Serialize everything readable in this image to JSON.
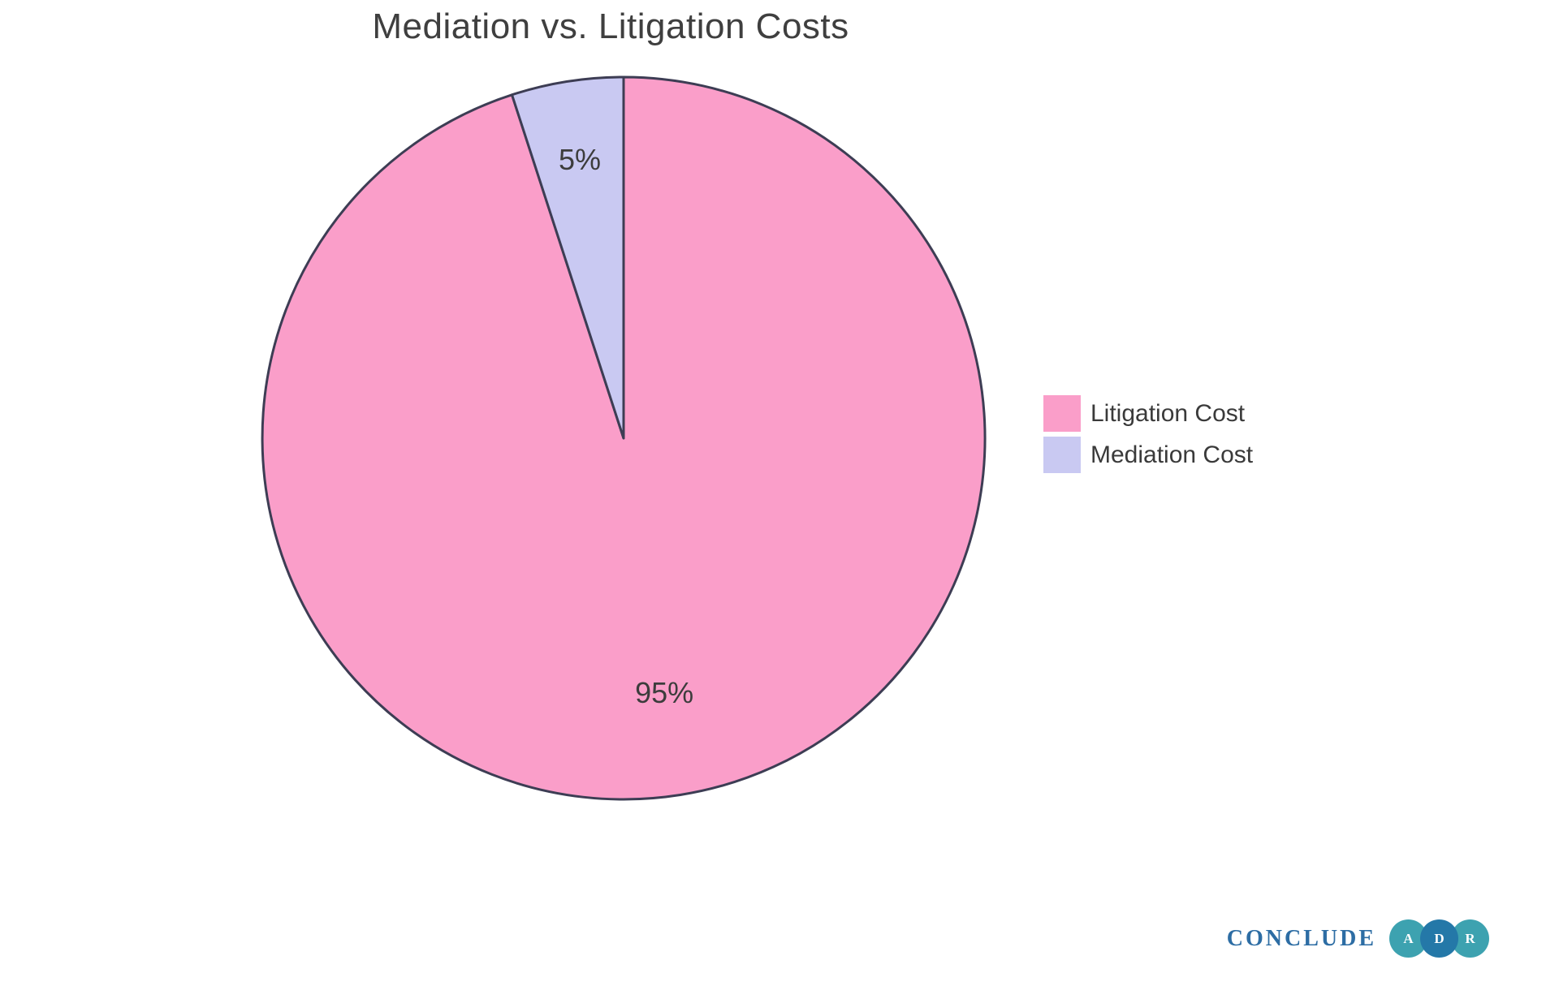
{
  "chart_data": {
    "type": "pie",
    "title": "Mediation vs. Litigation Costs",
    "labels": [
      "Litigation Cost",
      "Mediation Cost"
    ],
    "values": [
      95,
      5
    ],
    "value_labels": [
      "95%",
      "5%"
    ],
    "colors": [
      "#FA9EC9",
      "#C9C9F2"
    ],
    "border_color": "#3D3D54",
    "label_color": "#3C3C3C",
    "legend_position": "right",
    "start_angle_deg": 0,
    "direction": "clockwise"
  },
  "logo": {
    "wordmark": "CONCLUDE",
    "wordmark_color": "#2D6DA4",
    "circles": [
      {
        "letter": "A",
        "color": "#3DA2B0"
      },
      {
        "letter": "D",
        "color": "#2478A8"
      },
      {
        "letter": "R",
        "color": "#3DA2B0"
      }
    ]
  }
}
